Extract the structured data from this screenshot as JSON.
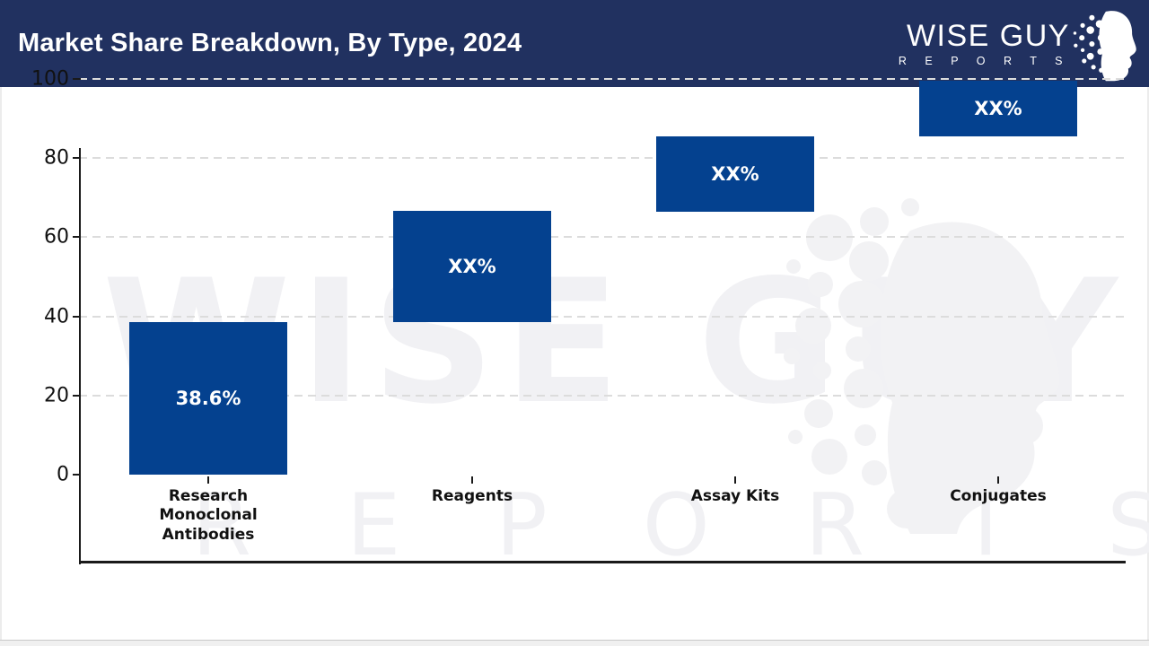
{
  "header": {
    "title": "Market Share Breakdown, By Type, 2024",
    "logo_line1": "WISE GUY",
    "logo_line2": "R E P O R T S"
  },
  "watermark": {
    "line1": "WISE GUY",
    "line2": "R E P O R T S"
  },
  "colors": {
    "header_bg": "#213160",
    "bar_fill": "#04418f",
    "bar_label_text": "#ffffff",
    "grid_line": "#dcdcdc",
    "axis_line": "#1a1a1a",
    "watermark": "#f1f1f4",
    "tick_text": "#111111"
  },
  "chart_data": {
    "type": "bar",
    "subtype": "waterfall-style floating segments",
    "title": "Market Share Breakdown, By Type, 2024",
    "xlabel": "",
    "ylabel": "",
    "ylim": [
      0,
      100
    ],
    "yticks": [
      0,
      20,
      40,
      60,
      80,
      100
    ],
    "grid": "horizontal dashed, legend none",
    "categories": [
      "Research\nMonoclonal\nAntibodies",
      "Reagents",
      "Assay Kits",
      "Conjugates"
    ],
    "segments": [
      {
        "category": "Research Monoclonal Antibodies",
        "start": 0,
        "end": 38.6,
        "label": "38.6%"
      },
      {
        "category": "Reagents",
        "start": 38.6,
        "end": 66.6,
        "label": "XX%"
      },
      {
        "category": "Assay Kits",
        "start": 66.4,
        "end": 85.4,
        "label": "XX%"
      },
      {
        "category": "Conjugates",
        "start": 85.5,
        "end": 99.6,
        "label": "XX%"
      }
    ]
  }
}
